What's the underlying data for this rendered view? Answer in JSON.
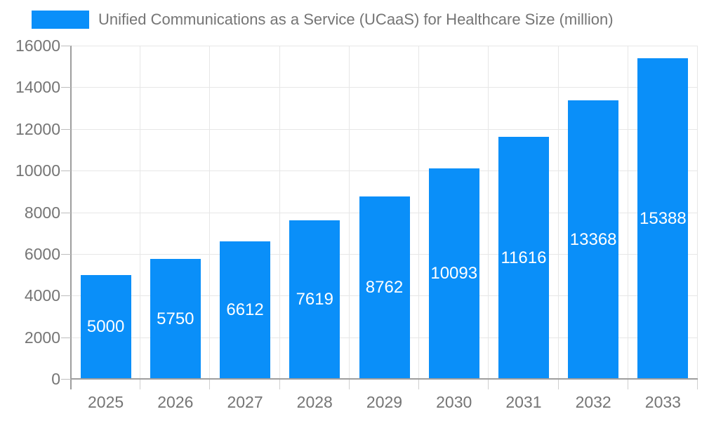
{
  "legend": {
    "label": "Unified Communications as a Service (UCaaS) for Healthcare Size (million)"
  },
  "colors": {
    "bar": "#0a8ff9",
    "axis_text": "#757575",
    "value_label": "#ffffff",
    "gridline": "#e7e7e7",
    "axis_line": "#9e9e9e",
    "background": "#ffffff"
  },
  "chart_data": {
    "type": "bar",
    "title": "Unified Communications as a Service (UCaaS) for Healthcare Size (million)",
    "categories": [
      "2025",
      "2026",
      "2027",
      "2028",
      "2029",
      "2030",
      "2031",
      "2032",
      "2033"
    ],
    "values": [
      5000,
      5750,
      6612,
      7619,
      8762,
      10093,
      11616,
      13368,
      15388
    ],
    "series": [
      {
        "name": "Unified Communications as a Service (UCaaS) for Healthcare Size (million)",
        "values": [
          5000,
          5750,
          6612,
          7619,
          8762,
          10093,
          11616,
          13368,
          15388
        ]
      }
    ],
    "xlabel": "",
    "ylabel": "",
    "ylim": [
      0,
      16000
    ],
    "y_ticks": [
      0,
      2000,
      4000,
      6000,
      8000,
      10000,
      12000,
      14000,
      16000
    ],
    "grid": true,
    "legend_position": "top-left",
    "value_label_position": "inside-center"
  }
}
